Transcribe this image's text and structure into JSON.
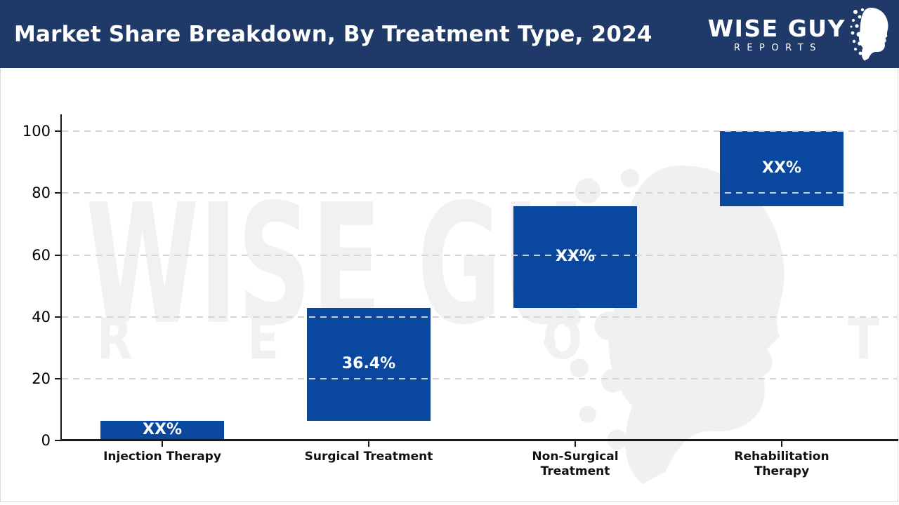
{
  "header": {
    "title": "Market Share Breakdown, By Treatment Type, 2024",
    "logo": {
      "line1": "WISE GUY",
      "line2": "REPORTS"
    }
  },
  "watermark": {
    "line1": "WISE GU",
    "line2": "R E P O R T S"
  },
  "chart_data": {
    "type": "bar",
    "subtype": "waterfall",
    "title": "Market Share Breakdown, By Treatment Type, 2024",
    "categories": [
      "Injection Therapy",
      "Surgical Treatment",
      "Non-Surgical Treatment",
      "Rehabilitation Therapy"
    ],
    "category_label_lines": [
      [
        "Injection Therapy"
      ],
      [
        "Surgical Treatment"
      ],
      [
        "Non-Surgical",
        "Treatment"
      ],
      [
        "Rehabilitation",
        "Therapy"
      ]
    ],
    "segments": [
      {
        "category": "Injection Therapy",
        "start": 0,
        "end": 6.4,
        "label": "XX%"
      },
      {
        "category": "Surgical Treatment",
        "start": 6.4,
        "end": 42.8,
        "label": "36.4%"
      },
      {
        "category": "Non-Surgical Treatment",
        "start": 42.8,
        "end": 75.8,
        "label": "XX%"
      },
      {
        "category": "Rehabilitation Therapy",
        "start": 75.8,
        "end": 100,
        "label": "XX%"
      }
    ],
    "yticks": [
      0,
      20,
      40,
      60,
      80,
      100
    ],
    "ylim": [
      0,
      105.5
    ],
    "xlabel": "",
    "ylabel": "",
    "legend": "none",
    "grid": {
      "horizontal": true,
      "style": "dashed",
      "drawn_above_bars": true
    },
    "bar_color": "#0a479e",
    "bar_label_color": "#ffffff",
    "background_color": "#ffffff",
    "header_color": "#1f3a68"
  }
}
